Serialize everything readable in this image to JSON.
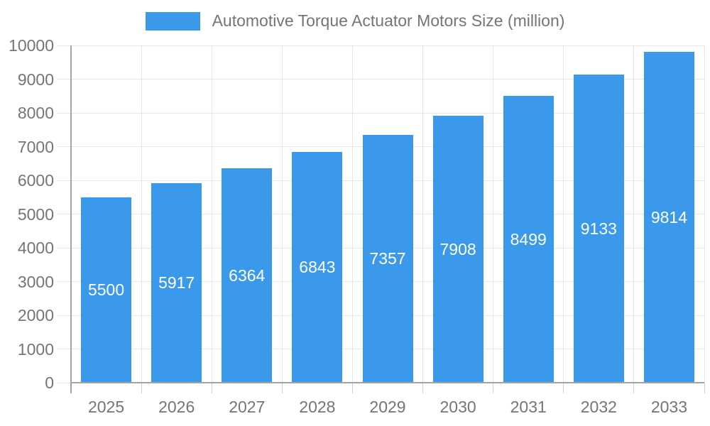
{
  "legend": {
    "label": "Automotive Torque Actuator Motors Size (million)",
    "swatch_color": "#3b99ec"
  },
  "chart_data": {
    "type": "bar",
    "title": "Automotive Torque Actuator Motors Size (million)",
    "categories": [
      "2025",
      "2026",
      "2027",
      "2028",
      "2029",
      "2030",
      "2031",
      "2032",
      "2033"
    ],
    "values": [
      5500,
      5917,
      6364,
      6843,
      7357,
      7908,
      8499,
      9133,
      9814
    ],
    "xlabel": "",
    "ylabel": "",
    "ylim": [
      0,
      10000
    ],
    "ytick_step": 1000,
    "ytick_labels": [
      "0",
      "1000",
      "2000",
      "3000",
      "4000",
      "5000",
      "6000",
      "7000",
      "8000",
      "9000",
      "10000"
    ],
    "grid": true,
    "legend_position": "top",
    "value_labels": "inside-center"
  },
  "colors": {
    "bar": "#3b99ec",
    "value_label_text": "#ffffff",
    "axis_text": "#757575",
    "axis_line": "#a3a3a3",
    "gridline": "#e6e6e6",
    "background": "#ffffff"
  }
}
